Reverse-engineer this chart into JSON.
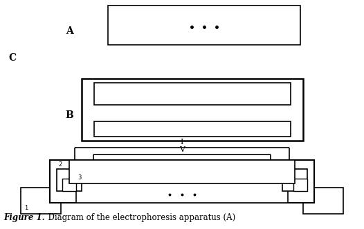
{
  "bg_color": "#ffffff",
  "line_color": "#000000",
  "caption_italic": "Figure 1.",
  "caption_normal": "  Diagram of the electrophoresis apparatus (A)",
  "label_A": "A",
  "label_B": "B",
  "label_C": "C",
  "label_I": "I",
  "label_V": "V",
  "label_1": "1",
  "label_2": "2",
  "label_3": "3"
}
